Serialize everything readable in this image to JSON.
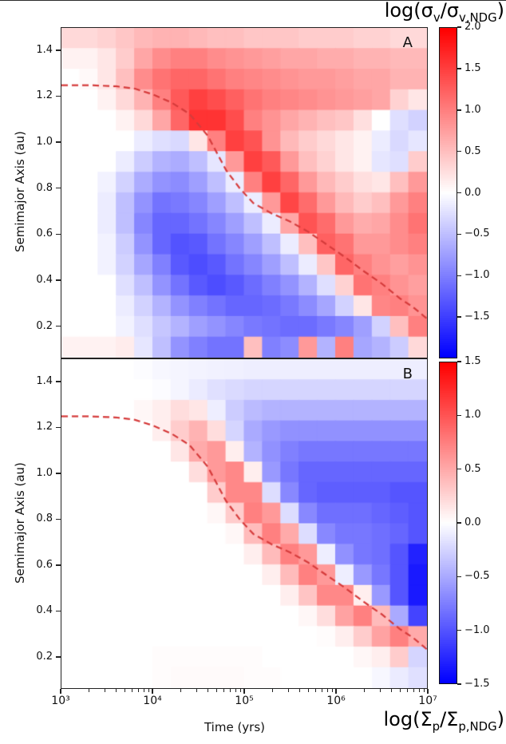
{
  "titles": {
    "top": {
      "pre": "log(σ",
      "sub1": "v",
      "mid": "/σ",
      "sub2": "v,NDG",
      "post": ")"
    },
    "bottom": {
      "pre": "log(Σ",
      "sub1": "p",
      "mid": "/Σ",
      "sub2": "p,NDG",
      "post": ")"
    }
  },
  "axes": {
    "xlabel": "Time (yrs)",
    "ylabel": "Semimajor Axis (au)",
    "x_tick_labels": [
      "10³",
      "10⁴",
      "10⁵",
      "10⁶",
      "10⁷"
    ],
    "x_tick_exponents": [
      3,
      4,
      5,
      6,
      7
    ],
    "y_tick_labels": [
      "1.4",
      "1.2",
      "1.0",
      "0.8",
      "0.6",
      "0.4",
      "0.2"
    ],
    "y_tick_values": [
      1.4,
      1.2,
      1.0,
      0.8,
      0.6,
      0.4,
      0.2
    ]
  },
  "chart_data": [
    {
      "type": "heatmap",
      "panel_label": "A",
      "title": "log(σv/σv,NDG)",
      "colormap": "bwr",
      "clim": [
        -2.0,
        2.0
      ],
      "colorbar_tick_values": [
        2.0,
        1.5,
        1.0,
        0.5,
        0.0,
        -0.5,
        -1.0,
        -1.5
      ],
      "colorbar_tick_labels": [
        "2.0",
        "1.5",
        "1.0",
        "0.5",
        "0.0",
        "−0.5",
        "−1.0",
        "−1.5"
      ],
      "x_log10_range": [
        3.0,
        7.0
      ],
      "y_range_au": [
        0.06,
        1.5
      ],
      "x_bin_centers_log10": [
        3.1,
        3.3,
        3.5,
        3.7,
        3.9,
        4.1,
        4.3,
        4.5,
        4.7,
        4.9,
        5.1,
        5.3,
        5.5,
        5.7,
        5.9,
        6.1,
        6.3,
        6.5,
        6.7,
        6.9
      ],
      "y_bin_centers_au": [
        1.455,
        1.365,
        1.275,
        1.185,
        1.095,
        1.005,
        0.915,
        0.825,
        0.735,
        0.645,
        0.555,
        0.465,
        0.375,
        0.285,
        0.195,
        0.105
      ],
      "values": [
        [
          0.3,
          0.3,
          0.35,
          0.45,
          0.55,
          0.6,
          0.6,
          0.55,
          0.5,
          0.5,
          0.45,
          0.45,
          0.45,
          0.4,
          0.4,
          0.4,
          0.35,
          0.35,
          0.3,
          0.3
        ],
        [
          0.1,
          0.1,
          0.2,
          0.4,
          0.7,
          0.9,
          1.0,
          1.0,
          0.9,
          0.85,
          0.8,
          0.75,
          0.7,
          0.7,
          0.65,
          0.65,
          0.6,
          0.6,
          0.55,
          0.55
        ],
        [
          0.0,
          0.05,
          0.2,
          0.5,
          0.9,
          1.1,
          1.2,
          1.2,
          1.1,
          1.0,
          0.95,
          0.9,
          0.85,
          0.8,
          0.8,
          0.75,
          0.7,
          0.7,
          0.6,
          0.6
        ],
        [
          0.0,
          0.0,
          0.1,
          0.3,
          0.6,
          1.0,
          1.3,
          1.5,
          1.4,
          1.25,
          1.1,
          1.0,
          0.95,
          0.9,
          0.85,
          0.8,
          0.75,
          0.7,
          0.35,
          0.2
        ],
        [
          0.0,
          0.0,
          0.0,
          0.1,
          0.3,
          0.7,
          1.2,
          1.6,
          1.6,
          1.4,
          1.0,
          0.85,
          0.7,
          0.6,
          0.5,
          0.45,
          0.25,
          0.0,
          -0.25,
          -0.35
        ],
        [
          0.0,
          0.0,
          0.0,
          0.0,
          -0.15,
          -0.25,
          -0.3,
          0.2,
          1.0,
          1.5,
          1.35,
          0.85,
          0.55,
          0.4,
          0.3,
          0.2,
          0.1,
          -0.15,
          -0.3,
          -0.2
        ],
        [
          0.0,
          0.0,
          0.0,
          -0.15,
          -0.4,
          -0.6,
          -0.65,
          -0.5,
          -0.2,
          0.8,
          1.5,
          1.3,
          0.8,
          0.5,
          0.35,
          0.2,
          0.1,
          -0.2,
          -0.25,
          0.4
        ],
        [
          0.0,
          0.0,
          -0.1,
          -0.35,
          -0.65,
          -0.85,
          -0.9,
          -0.75,
          -0.5,
          -0.15,
          1.0,
          1.5,
          1.2,
          0.8,
          0.55,
          0.4,
          0.25,
          0.2,
          0.5,
          0.8
        ],
        [
          0.0,
          0.0,
          -0.15,
          -0.5,
          -0.85,
          -1.1,
          -1.05,
          -0.95,
          -0.75,
          -0.5,
          -0.15,
          0.8,
          1.45,
          1.15,
          0.8,
          0.55,
          0.4,
          0.5,
          0.8,
          1.0
        ],
        [
          0.0,
          0.0,
          -0.15,
          -0.5,
          -0.95,
          -1.2,
          -1.2,
          -1.1,
          -0.95,
          -0.75,
          -0.5,
          -0.15,
          0.7,
          1.35,
          1.15,
          0.8,
          0.65,
          0.7,
          0.9,
          1.1
        ],
        [
          0.0,
          0.0,
          -0.1,
          -0.4,
          -0.85,
          -1.2,
          -1.35,
          -1.3,
          -1.1,
          -0.95,
          -0.75,
          -0.5,
          -0.15,
          0.5,
          1.25,
          1.1,
          0.8,
          0.8,
          0.9,
          1.0
        ],
        [
          0.0,
          0.0,
          -0.1,
          -0.35,
          -0.7,
          -1.0,
          -1.3,
          -1.4,
          -1.3,
          -1.1,
          -0.95,
          -0.75,
          -0.5,
          -0.15,
          0.45,
          1.2,
          1.0,
          0.85,
          0.75,
          0.85
        ],
        [
          0.0,
          0.0,
          0.0,
          -0.25,
          -0.5,
          -0.85,
          -1.1,
          -1.3,
          -1.4,
          -1.3,
          -1.15,
          -1.0,
          -0.85,
          -0.6,
          -0.25,
          0.35,
          1.1,
          1.0,
          0.85,
          0.75
        ],
        [
          0.0,
          0.0,
          0.0,
          -0.15,
          -0.35,
          -0.6,
          -0.85,
          -1.0,
          -1.1,
          -1.2,
          -1.2,
          -1.15,
          -1.05,
          -0.9,
          -0.7,
          -0.35,
          0.2,
          0.95,
          1.0,
          0.85
        ],
        [
          0.0,
          0.0,
          0.0,
          -0.1,
          -0.25,
          -0.45,
          -0.6,
          -0.75,
          -0.85,
          -0.95,
          -1.05,
          -1.1,
          -1.15,
          -1.15,
          -1.05,
          -0.95,
          -0.75,
          -0.35,
          0.5,
          1.0
        ],
        [
          0.1,
          0.1,
          0.1,
          0.15,
          -0.2,
          -0.5,
          -0.85,
          -1.0,
          -1.1,
          -1.1,
          0.5,
          -1.0,
          -0.9,
          0.8,
          -0.6,
          1.0,
          -0.7,
          -0.6,
          -0.4,
          0.3
        ]
      ],
      "overlay_line": {
        "style": "dashed",
        "color": "#d63c3c",
        "points_log10t": [
          3.0,
          3.3,
          3.6,
          3.8,
          4.0,
          4.2,
          4.4,
          4.6,
          4.8,
          4.95,
          5.1,
          5.3,
          5.5,
          5.7,
          5.9,
          6.1,
          6.3,
          6.5,
          6.7,
          6.85,
          7.0
        ],
        "points_au": [
          1.25,
          1.25,
          1.245,
          1.235,
          1.21,
          1.175,
          1.125,
          1.03,
          0.88,
          0.8,
          0.735,
          0.69,
          0.655,
          0.61,
          0.555,
          0.5,
          0.44,
          0.385,
          0.32,
          0.28,
          0.23
        ]
      }
    },
    {
      "type": "heatmap",
      "panel_label": "B",
      "title": "log(Σp/Σp,NDG)",
      "colormap": "bwr",
      "clim": [
        -1.5,
        1.5
      ],
      "colorbar_tick_values": [
        1.5,
        1.0,
        0.5,
        0.0,
        -0.5,
        -1.0,
        -1.5
      ],
      "colorbar_tick_labels": [
        "1.5",
        "1.0",
        "0.5",
        "0.0",
        "−0.5",
        "−1.0",
        "−1.5"
      ],
      "x_log10_range": [
        3.0,
        7.0
      ],
      "y_range_au": [
        0.06,
        1.5
      ],
      "x_bin_centers_log10": [
        3.1,
        3.3,
        3.5,
        3.7,
        3.9,
        4.1,
        4.3,
        4.5,
        4.7,
        4.9,
        5.1,
        5.3,
        5.5,
        5.7,
        5.9,
        6.1,
        6.3,
        6.5,
        6.7,
        6.9
      ],
      "y_bin_centers_au": [
        1.455,
        1.365,
        1.275,
        1.185,
        1.095,
        1.005,
        0.915,
        0.825,
        0.735,
        0.645,
        0.555,
        0.465,
        0.375,
        0.285,
        0.195,
        0.105
      ],
      "values": [
        [
          0,
          0,
          0,
          0,
          -0.02,
          -0.05,
          -0.06,
          -0.07,
          -0.08,
          -0.09,
          -0.1,
          -0.1,
          -0.1,
          -0.1,
          -0.1,
          -0.1,
          -0.1,
          -0.1,
          -0.1,
          -0.1
        ],
        [
          0,
          0,
          0,
          0,
          0,
          -0.02,
          -0.06,
          -0.12,
          -0.18,
          -0.22,
          -0.25,
          -0.25,
          -0.25,
          -0.25,
          -0.25,
          -0.25,
          -0.25,
          -0.25,
          -0.25,
          -0.25
        ],
        [
          0,
          0,
          0,
          0,
          0.05,
          0.1,
          0.2,
          0.15,
          -0.1,
          -0.3,
          -0.4,
          -0.45,
          -0.45,
          -0.45,
          -0.45,
          -0.45,
          -0.45,
          -0.45,
          -0.45,
          -0.45
        ],
        [
          0,
          0,
          0,
          0,
          0,
          0.1,
          0.3,
          0.45,
          0.2,
          -0.25,
          -0.5,
          -0.6,
          -0.65,
          -0.65,
          -0.65,
          -0.65,
          -0.65,
          -0.65,
          -0.65,
          -0.65
        ],
        [
          0,
          0,
          0,
          0,
          0,
          0,
          0.15,
          0.5,
          0.6,
          0.1,
          -0.45,
          -0.65,
          -0.75,
          -0.8,
          -0.8,
          -0.8,
          -0.8,
          -0.8,
          -0.8,
          -0.8
        ],
        [
          0,
          0,
          0,
          0,
          0,
          0,
          0,
          0.2,
          0.6,
          0.7,
          0.1,
          -0.6,
          -0.8,
          -0.9,
          -0.9,
          -0.9,
          -0.9,
          -0.9,
          -0.9,
          -0.9
        ],
        [
          0,
          0,
          0,
          0,
          0,
          0,
          0,
          0,
          0.3,
          0.7,
          0.7,
          -0.2,
          -0.7,
          -0.9,
          -0.95,
          -0.95,
          -0.95,
          -0.95,
          -1.0,
          -1.0
        ],
        [
          0,
          0,
          0,
          0,
          0,
          0,
          0,
          0,
          0.05,
          0.3,
          0.75,
          0.6,
          -0.2,
          -0.7,
          -0.85,
          -0.85,
          -0.85,
          -0.9,
          -0.95,
          -1.0
        ],
        [
          0,
          0,
          0,
          0,
          0,
          0,
          0,
          0,
          0,
          0.05,
          0.4,
          0.75,
          0.5,
          -0.2,
          -0.7,
          -0.8,
          -0.8,
          -0.85,
          -0.9,
          -1.0
        ],
        [
          0,
          0,
          0,
          0,
          0,
          0,
          0,
          0,
          0,
          0,
          0.1,
          0.4,
          0.75,
          0.6,
          -0.1,
          -0.65,
          -0.8,
          -0.85,
          -1.0,
          -1.3
        ],
        [
          0,
          0,
          0,
          0,
          0,
          0,
          0,
          0,
          0,
          0,
          0,
          0.1,
          0.4,
          0.75,
          0.6,
          -0.1,
          -0.6,
          -0.8,
          -1.0,
          -1.35
        ],
        [
          0,
          0,
          0,
          0,
          0,
          0,
          0,
          0,
          0,
          0,
          0,
          0,
          0.1,
          0.35,
          0.7,
          0.7,
          0.1,
          -0.6,
          -1.0,
          -1.35
        ],
        [
          0,
          0,
          0,
          0,
          0,
          0,
          0,
          0,
          0,
          0,
          0,
          0,
          0,
          0.05,
          0.2,
          0.55,
          0.75,
          0.4,
          -0.5,
          -1.1
        ],
        [
          0,
          0,
          0,
          0,
          0,
          0,
          0,
          0,
          0,
          0,
          0,
          0,
          0,
          0,
          0.02,
          0.1,
          0.3,
          0.55,
          0.75,
          0.5
        ],
        [
          0,
          0,
          0,
          0,
          0,
          0.02,
          0.02,
          0.02,
          0.02,
          0.02,
          0.02,
          0,
          0,
          0,
          0,
          0,
          0.05,
          0.1,
          0.3,
          -0.25
        ],
        [
          0,
          0,
          0,
          0,
          0,
          0.02,
          0.03,
          0.03,
          0.03,
          0.03,
          0.02,
          0.02,
          0,
          0,
          0,
          0,
          0,
          -0.05,
          -0.12,
          -0.18
        ]
      ],
      "overlay_line": {
        "style": "dashed",
        "color": "#d63c3c",
        "points_log10t": [
          3.0,
          3.3,
          3.6,
          3.8,
          4.0,
          4.2,
          4.4,
          4.6,
          4.8,
          4.95,
          5.1,
          5.3,
          5.5,
          5.7,
          5.9,
          6.1,
          6.3,
          6.5,
          6.7,
          6.85,
          7.0
        ],
        "points_au": [
          1.25,
          1.25,
          1.245,
          1.235,
          1.21,
          1.175,
          1.125,
          1.03,
          0.88,
          0.8,
          0.735,
          0.69,
          0.655,
          0.61,
          0.555,
          0.5,
          0.44,
          0.385,
          0.32,
          0.28,
          0.23
        ]
      }
    }
  ]
}
